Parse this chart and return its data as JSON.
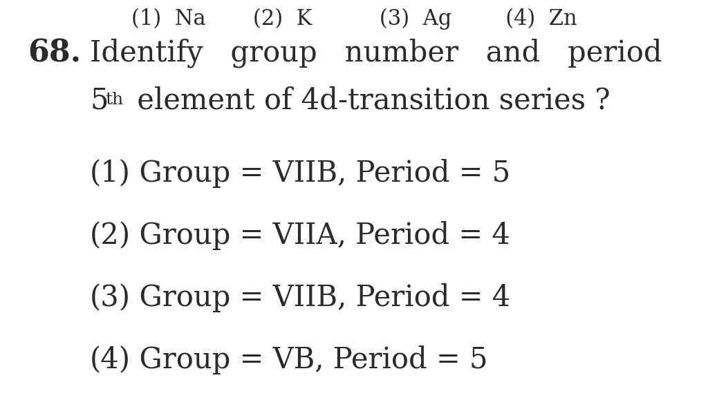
{
  "background_color": "#ffffff",
  "question_number": "68.",
  "question_line1": "Identify   group   number   and   period",
  "question_line2_prefix": "5",
  "question_line2_superscript": "th",
  "question_line2_suffix": " element of 4d-transition series ?",
  "options": [
    {
      "num": "(1)",
      "text": "  Group = VIIB, Period = 5"
    },
    {
      "num": "(2)",
      "text": "  Group = VIIA, Period = 4"
    },
    {
      "num": "(3)",
      "text": "  Group = VIIB, Period = 4"
    },
    {
      "num": "(4)",
      "text": "  Group = VB, Period = 5"
    }
  ],
  "header_text": "(1)  Na       (2)  K          (3)  Ag        (4)  Zn",
  "text_color": "#2a2a2a",
  "font_family": "serif",
  "q_num_fontsize": 32,
  "q_text_fontsize": 30,
  "option_fontsize": 30,
  "header_fontsize": 22,
  "superscript_fontsize": 18
}
